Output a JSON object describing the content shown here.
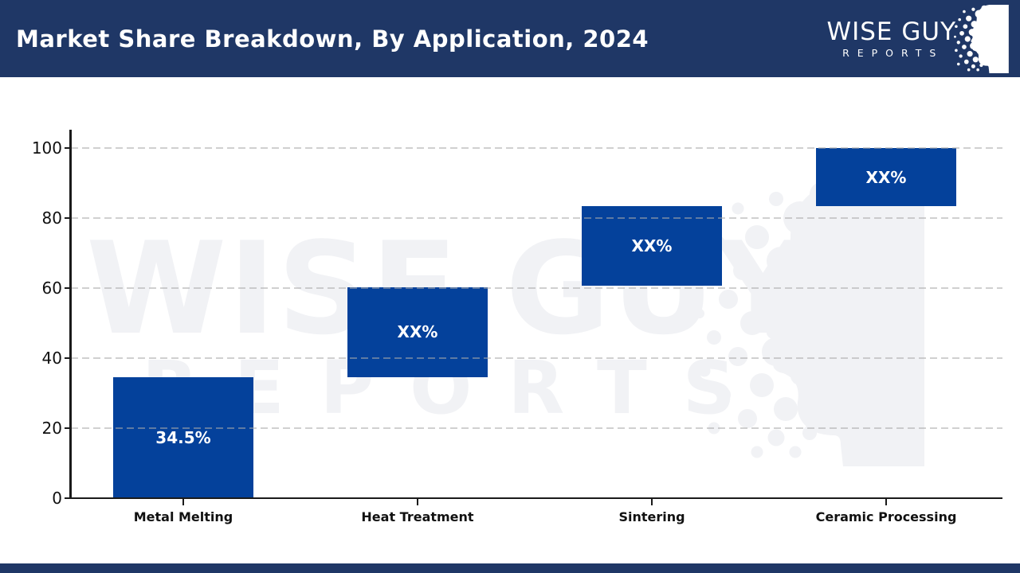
{
  "header": {
    "title": "Market Share Breakdown, By Application, 2024",
    "logo": {
      "line1": "WISE GUY",
      "line2": "REPORTS"
    }
  },
  "watermark": {
    "line1": "WISE GUY",
    "line2": "REPORTS"
  },
  "colors": {
    "header_bg": "#1f3766",
    "footer_bg": "#1f3766",
    "title": "#ffffff",
    "bar": "#04419b",
    "bar_label": "#ffffff",
    "axis": "#1a1a1a",
    "tick_label": "#111111",
    "watermark": "#f1f2f5"
  },
  "chart_data": {
    "type": "bar",
    "subtype": "waterfall",
    "title": "Market Share Breakdown, By Application, 2024",
    "categories": [
      "Metal Melting",
      "Heat Treatment",
      "Sintering",
      "Ceramic Processing"
    ],
    "bars": [
      {
        "category": "Metal Melting",
        "start": 0,
        "end": 34.5,
        "label": "34.5%"
      },
      {
        "category": "Heat Treatment",
        "start": 34.5,
        "end": 60.3,
        "label": "XX%"
      },
      {
        "category": "Sintering",
        "start": 60.6,
        "end": 83.4,
        "label": "XX%"
      },
      {
        "category": "Ceramic Processing",
        "start": 83.4,
        "end": 100,
        "label": "XX%"
      }
    ],
    "xlabel": "",
    "ylabel": "",
    "yticks": [
      0,
      20,
      40,
      60,
      80,
      100
    ],
    "ylim": [
      0,
      105
    ],
    "grid": "horizontal-dashed",
    "legend": null
  }
}
